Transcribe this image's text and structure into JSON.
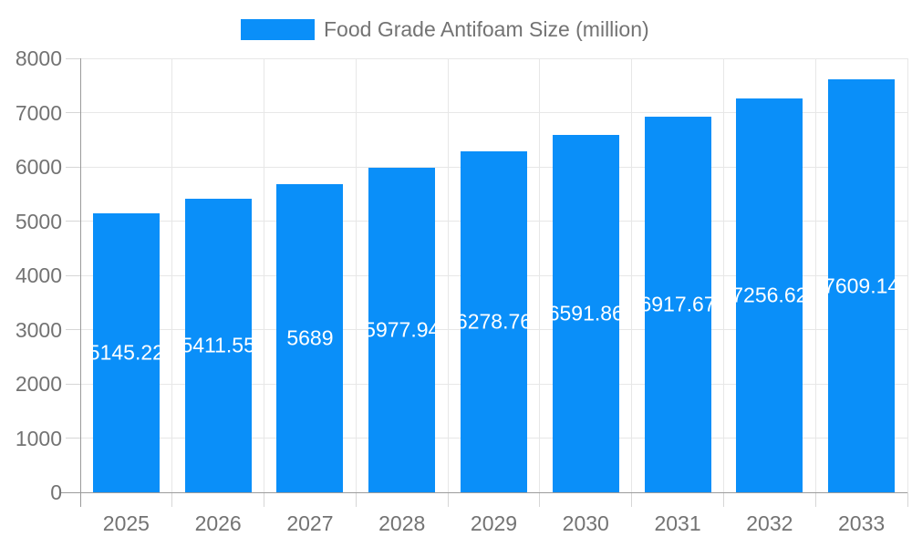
{
  "legend": {
    "swatch": "series-color-swatch"
  },
  "colors": {
    "bar": "#0A8FF9",
    "axis_text": "#737373",
    "axis_line": "#9B9B9B",
    "grid_line": "#E7E7E7",
    "tick_line": "#D6D6D6",
    "value_label": "#FFFFFF",
    "background": "#FFFFFF"
  },
  "chart_data": {
    "type": "bar",
    "title": "Food Grade Antifoam Size (million)",
    "categories": [
      "2025",
      "2026",
      "2027",
      "2028",
      "2029",
      "2030",
      "2031",
      "2032",
      "2033"
    ],
    "values": [
      5145.22,
      5411.55,
      5689,
      5977.94,
      6278.76,
      6591.86,
      6917.67,
      7256.62,
      7609.14
    ],
    "value_labels": [
      "5145.22",
      "5411.55",
      "5689",
      "5977.94",
      "6278.76",
      "6591.86",
      "6917.67",
      "7256.62",
      "7609.14"
    ],
    "xlabel": "",
    "ylabel": "",
    "ylim": [
      0,
      8000
    ],
    "ytick_step": 1000,
    "ytick_labels": [
      "0",
      "1000",
      "2000",
      "3000",
      "4000",
      "5000",
      "6000",
      "7000",
      "8000"
    ],
    "grid": true,
    "legend_position": "top-center",
    "bar_label_position": "center",
    "bar_label_color": "#FFFFFF"
  }
}
